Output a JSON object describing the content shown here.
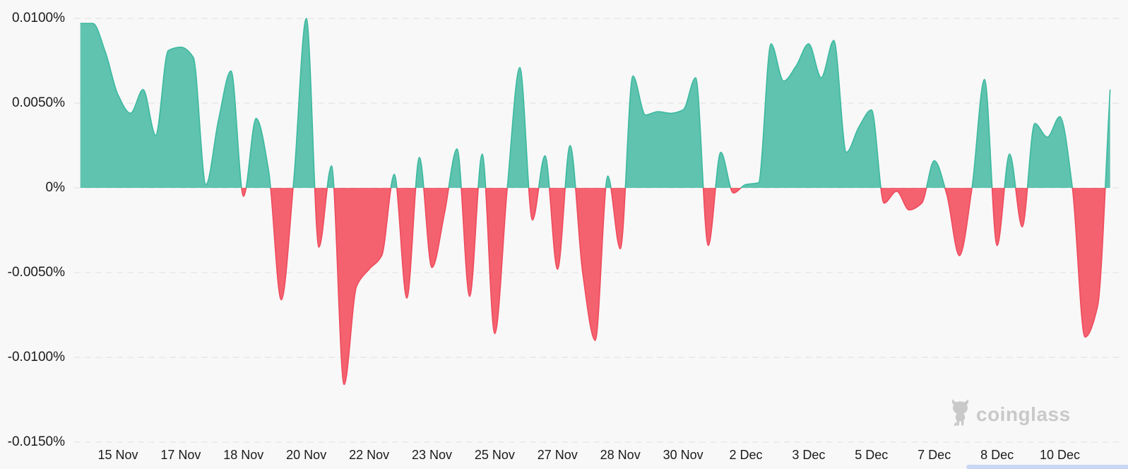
{
  "chart_data": {
    "type": "area",
    "unit": "%",
    "x_labels": [
      "15 Nov",
      "17 Nov",
      "18 Nov",
      "20 Nov",
      "22 Nov",
      "23 Nov",
      "25 Nov",
      "27 Nov",
      "28 Nov",
      "30 Nov",
      "2 Dec",
      "3 Dec",
      "5 Dec",
      "7 Dec",
      "8 Dec",
      "10 Dec"
    ],
    "label_start_index": 3,
    "label_step": 5,
    "interval_hours": 8,
    "values_pct": [
      0.0097,
      0.0097,
      0.008,
      0.0055,
      0.0044,
      0.0058,
      0.0031,
      0.0081,
      0.0083,
      0.0077,
      0.0002,
      0.004,
      0.0069,
      -0.0005,
      0.0041,
      0.001,
      -0.0066,
      0.0005,
      0.01,
      -0.0035,
      0.0013,
      -0.0116,
      -0.0058,
      -0.0048,
      -0.004,
      0.0008,
      -0.0065,
      0.0018,
      -0.0047,
      -0.0015,
      0.0023,
      -0.0064,
      0.002,
      -0.0086,
      0.0,
      0.0071,
      -0.0019,
      0.0019,
      -0.0048,
      0.0025,
      -0.005,
      -0.009,
      0.0007,
      -0.0036,
      0.0066,
      0.0043,
      0.0045,
      0.0044,
      0.0046,
      0.0065,
      -0.0034,
      0.0021,
      -0.0003,
      0.0002,
      0.0003,
      0.0085,
      0.0063,
      0.0072,
      0.0085,
      0.0065,
      0.0087,
      0.0021,
      0.0036,
      0.0046,
      -0.0009,
      -0.0002,
      -0.0013,
      -0.0009,
      0.0016,
      -0.0004,
      -0.004,
      0.0,
      0.0064,
      -0.0034,
      0.002,
      -0.0023,
      0.0038,
      0.003,
      0.0042,
      0.0,
      -0.0088,
      -0.007,
      0.0058
    ],
    "y_ticks": [
      {
        "label": "0.0100%",
        "value": 0.01
      },
      {
        "label": "0.0050%",
        "value": 0.005
      },
      {
        "label": "0%",
        "value": 0.0
      },
      {
        "label": "-0.0050%",
        "value": -0.005
      },
      {
        "label": "-0.0100%",
        "value": -0.01
      },
      {
        "label": "-0.0150%",
        "value": -0.015
      }
    ],
    "ylim": [
      -0.015,
      0.01
    ],
    "grid": "dashed-horizontal",
    "legend": "none",
    "colors": {
      "positive_fill": "#5FC3AF",
      "positive_line": "#3CB9A0",
      "negative_fill": "#F4626F",
      "negative_line": "#EF4B5D",
      "background": "#F8F8F8",
      "gridline": "#E8E8E8",
      "axis_text": "#1B1B1B"
    }
  },
  "watermark": {
    "text": "coinglass",
    "icon": "coinglass-bull-logo",
    "color": "#C9C9C9"
  },
  "scrollbar": {
    "color": "#C9D7F2"
  }
}
